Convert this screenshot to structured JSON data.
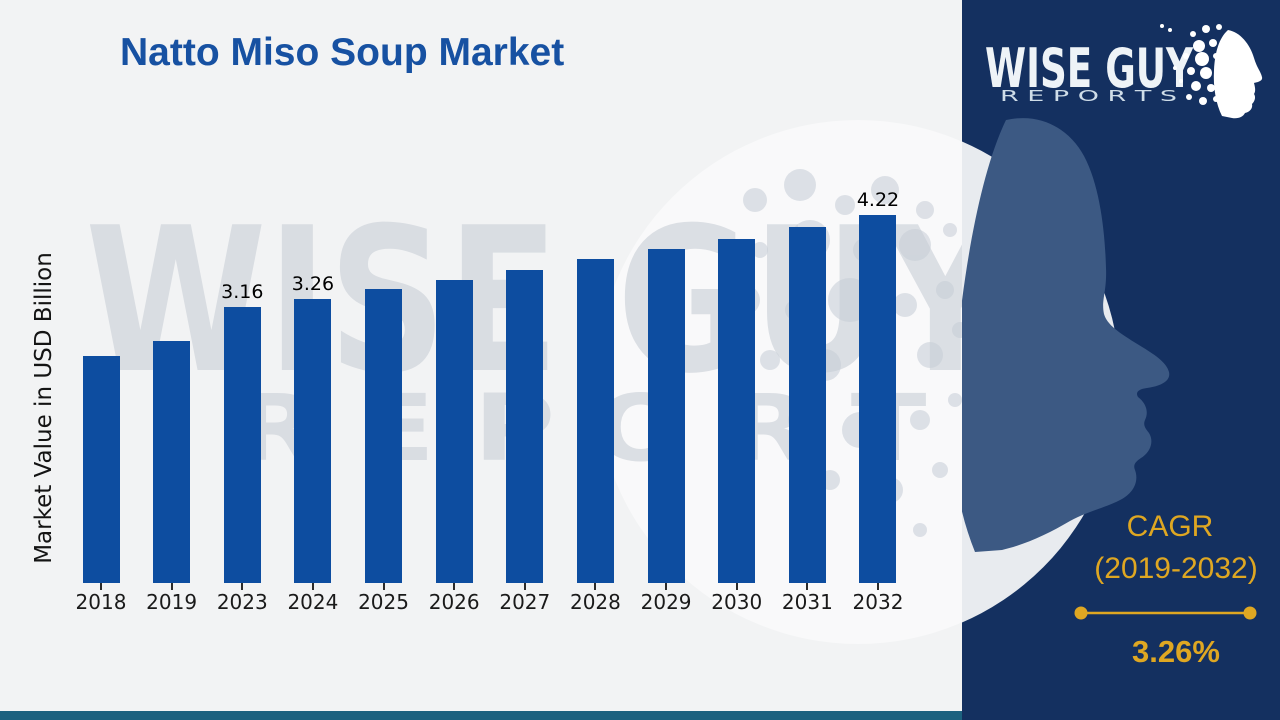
{
  "chart_data": {
    "type": "bar",
    "title": "Natto Miso Soup Market",
    "xlabel": "",
    "ylabel": "Market Value in USD Billion",
    "unit": "USD Billion",
    "categories": [
      "2018",
      "2019",
      "2023",
      "2024",
      "2025",
      "2026",
      "2027",
      "2028",
      "2029",
      "2030",
      "2031",
      "2032"
    ],
    "values": [
      2.6,
      2.78,
      3.16,
      3.26,
      3.37,
      3.48,
      3.59,
      3.71,
      3.83,
      3.95,
      4.08,
      4.22
    ],
    "bar_labels": [
      "",
      "",
      "3.16",
      "3.26",
      "",
      "",
      "",
      "",
      "",
      "",
      "",
      "4.22"
    ],
    "ylim": [
      0,
      4.6
    ],
    "grid": false,
    "legend": "none",
    "bar_color": "#0d4da0"
  },
  "watermark": {
    "line1": "WISE GUY",
    "line2": "R E P O R T S"
  },
  "logo": {
    "line1": "WISE GUY",
    "line2": "R E P O R T S"
  },
  "cagr": {
    "line1": "CAGR",
    "line2": "(2019-2032)",
    "value": "3.26%"
  },
  "colors": {
    "background": "#f2f3f4",
    "panel_navy": "#143060",
    "bar_blue": "#0d4da0",
    "title_blue": "#1751a2",
    "gold": "#dfa722",
    "teal_strip": "#1c617f",
    "face_blue": "#3c5983",
    "circle_light": "#e8ebef"
  }
}
